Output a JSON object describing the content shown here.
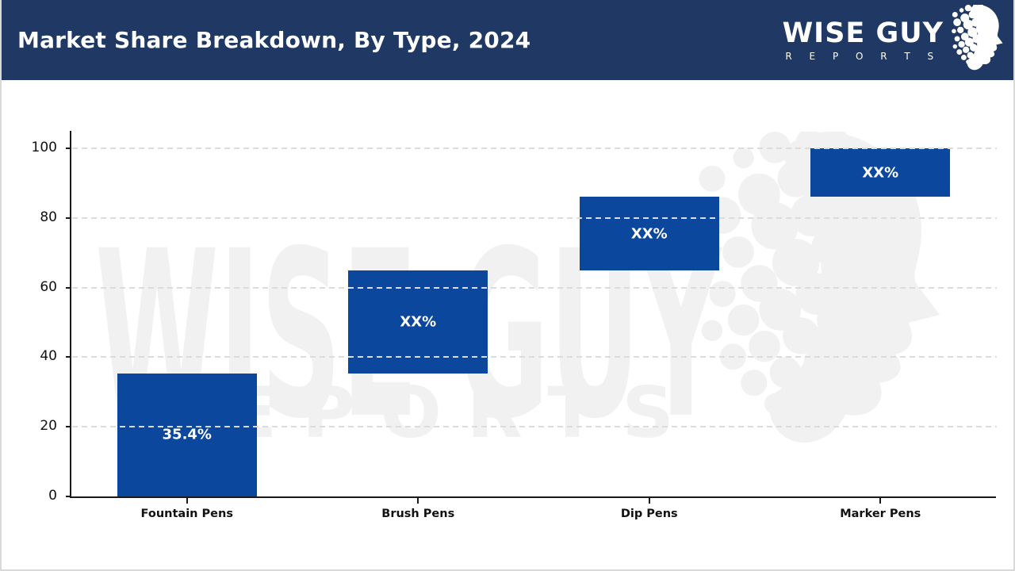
{
  "header": {
    "title": "Market Share Breakdown, By Type, 2024",
    "logo": {
      "wordmark": "WISE GUY",
      "subtitle": "R E P O R T S"
    }
  },
  "watermark": {
    "wordmark": "WISE GUY",
    "subtitle": "R E P O R T S"
  },
  "colors": {
    "header_bg": "#1f3864",
    "bar_fill": "#0b479d",
    "grid_line": "#dcdcdc",
    "axis": "#1a1a1a",
    "bar_label_text": "#ffffff",
    "watermark": "#f1f1f1"
  },
  "chart_data": {
    "type": "bar",
    "variant": "floating-waterfall-bars",
    "title": "Market Share Breakdown, By Type, 2024",
    "categories": [
      "Fountain Pens",
      "Brush Pens",
      "Dip Pens",
      "Marker Pens"
    ],
    "bars": [
      {
        "category": "Fountain Pens",
        "start": 0,
        "end": 35.4,
        "label": "35.4%"
      },
      {
        "category": "Brush Pens",
        "start": 35.4,
        "end": 65,
        "label": "XX%"
      },
      {
        "category": "Dip Pens",
        "start": 65,
        "end": 86,
        "label": "XX%"
      },
      {
        "category": "Marker Pens",
        "start": 86,
        "end": 100,
        "label": "XX%"
      }
    ],
    "xlabel": "",
    "ylabel": "",
    "ylim": [
      0,
      100
    ],
    "yticks": [
      0,
      20,
      40,
      60,
      80,
      100
    ],
    "grid": "dashed-horizontal-above-bars",
    "legend": "none"
  }
}
